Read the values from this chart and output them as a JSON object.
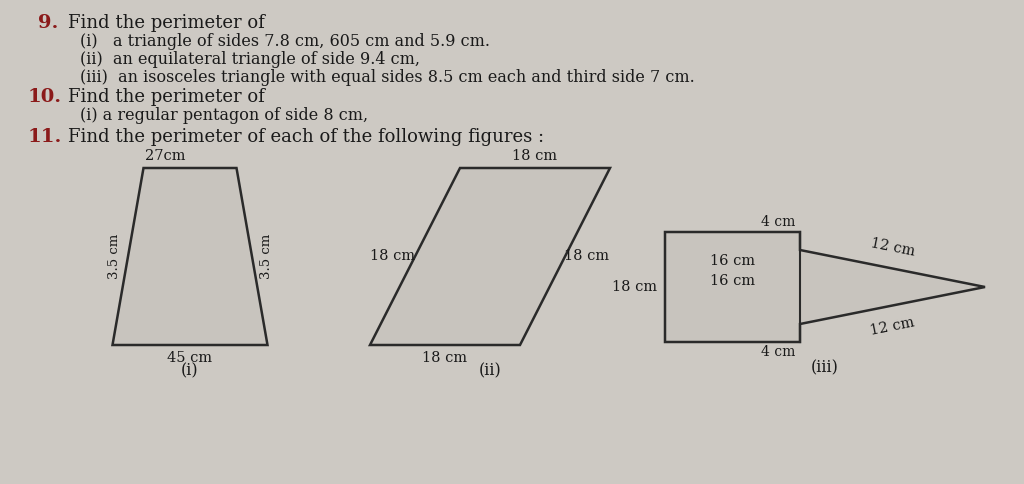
{
  "background_color": "#cdc9c3",
  "number_color": "#8b1a1a",
  "text_color": "#1a1a1a",
  "shape_fill": "#c8c4be",
  "shape_edge": "#2a2a2a",
  "line9": "9.",
  "text9": "Find the perimeter of",
  "sub9": [
    "(i)   a triangle of sides 7.8 cm, 605 cm and 5.9 cm.",
    "(ii)  an equilateral triangle of side 9.4 cm,",
    "(iii)  an isosceles triangle with equal sides 8.5 cm each and third side 7 cm."
  ],
  "line10": "10.",
  "text10": "Find the perimeter of",
  "sub10": "(i) a regular pentagon of side 8 cm,",
  "line11": "11.",
  "text11": "Find the perimeter of each of the following figures :",
  "fig_label_color": "#2a2a2a"
}
